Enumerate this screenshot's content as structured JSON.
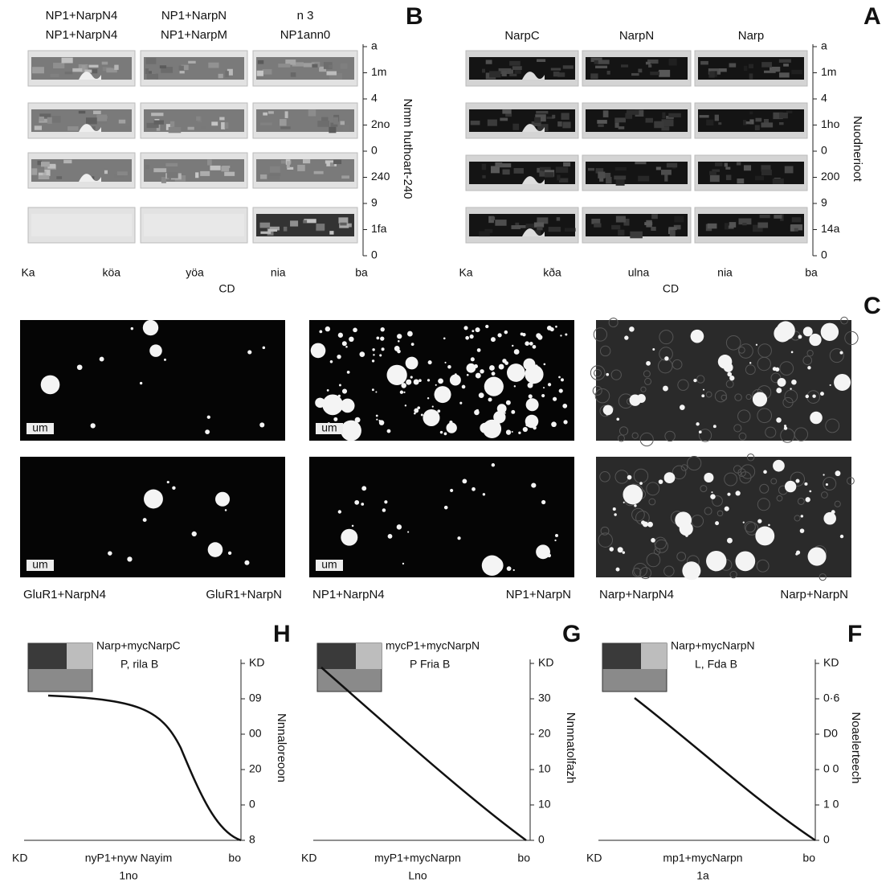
{
  "panels": {
    "A": {
      "letter": "A",
      "columns": [
        "NarpC",
        "NarpN",
        "Narp"
      ],
      "axis_title": "Nuodnerioot",
      "row_ticks": [
        "a",
        "1m",
        "4",
        "1ho",
        "0",
        "200",
        "9",
        "14a",
        "0"
      ],
      "x_labels": [
        "Ka",
        "kða",
        "ulna",
        "nia",
        "ba"
      ],
      "x_title": "CD"
    },
    "B": {
      "letter": "B",
      "columns": [
        [
          "NP1+NarpN4",
          "NP1+NarpN4"
        ],
        [
          "NP1+NarpN",
          "NP1+NarpM"
        ],
        [
          "n 3",
          "NP1ann0"
        ]
      ],
      "axis_title": "Nmm huthoart-240",
      "row_ticks": [
        "a",
        "1m",
        "4",
        "2no",
        "0",
        "240",
        "9",
        "1fa",
        "0"
      ],
      "x_labels": [
        "Ka",
        "köa",
        "yöa",
        "nia",
        "ba"
      ],
      "x_title": "CD"
    },
    "C": {
      "letter": "C",
      "scale_label": "um",
      "labels": [
        [
          "GluR1+NarpN4",
          "GluR1+NarpN"
        ],
        [
          "NP1+NarpN4",
          "NP1+NarpN"
        ],
        [
          "Narp+NarpN4",
          "Narp+NarpN"
        ]
      ]
    },
    "H": {
      "letter": "H",
      "title": "Narp+mycNarpC",
      "subtitle": "P,   rila B",
      "axis_title": "Nnnaloreoon",
      "ticks": [
        "KD",
        "09",
        "00",
        "20",
        "0",
        "8"
      ],
      "x_left": "KD",
      "x_mid": "nyP1+nyw Nayim",
      "x_right": "bo",
      "x_title": "1no"
    },
    "G": {
      "letter": "G",
      "title": "mycP1+mycNarpN",
      "subtitle": "P   Fria B",
      "axis_title": "Nnnnatolfazh",
      "ticks": [
        "KD",
        "30",
        "20",
        "10",
        "10",
        "0"
      ],
      "x_left": "KD",
      "x_mid": "myP1+mycNarpn",
      "x_right": "bo",
      "x_title": "Lno"
    },
    "F": {
      "letter": "F",
      "title": "Narp+mycNarpN",
      "subtitle": "L,   Fda B",
      "axis_title": "Noaelerteech",
      "ticks": [
        "KD",
        "0·6",
        "D0",
        "0 0",
        "1 0",
        "0"
      ],
      "x_left": "KD",
      "x_mid": "mp1+mycNarpn",
      "x_right": "bo",
      "x_title": "1a"
    }
  }
}
